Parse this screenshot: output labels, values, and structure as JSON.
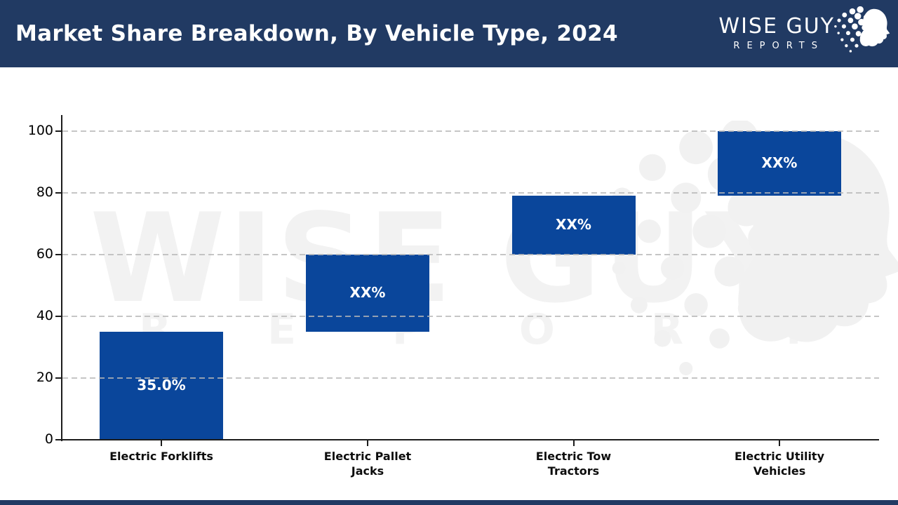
{
  "header": {
    "background": "#213a63",
    "title": "Market Share Breakdown, By Vehicle Type, 2024",
    "logo": {
      "primary": "WISE GUY",
      "secondary": "REPORTS"
    }
  },
  "watermark": {
    "primary": "WISE GUY",
    "secondary": "R E P O R T S"
  },
  "footer": {
    "background": "#213a63"
  },
  "chart_data": {
    "type": "bar",
    "subtype": "waterfall",
    "title": "Market Share Breakdown, By Vehicle Type, 2024",
    "xlabel": "",
    "ylabel": "",
    "ylim": [
      0,
      105
    ],
    "yticks": [
      0,
      20,
      40,
      60,
      80,
      100
    ],
    "grid": "horizontal-dashed",
    "legend": "none",
    "bar_color": "#0a469b",
    "bar_label_color": "#ffffff",
    "bars": [
      {
        "category": "Electric Forklifts",
        "category_lines": [
          "Electric Forklifts"
        ],
        "start": 0,
        "end": 35,
        "value": 35.0,
        "label": "35.0%"
      },
      {
        "category": "Electric Pallet Jacks",
        "category_lines": [
          "Electric Pallet",
          "Jacks"
        ],
        "start": 35,
        "end": 60,
        "value": 25.0,
        "label": "XX%"
      },
      {
        "category": "Electric Tow Tractors",
        "category_lines": [
          "Electric Tow",
          "Tractors"
        ],
        "start": 60,
        "end": 79,
        "value": 19.0,
        "label": "XX%"
      },
      {
        "category": "Electric Utility Vehicles",
        "category_lines": [
          "Electric Utility",
          "Vehicles"
        ],
        "start": 79,
        "end": 100,
        "value": 21.0,
        "label": "XX%"
      }
    ]
  }
}
